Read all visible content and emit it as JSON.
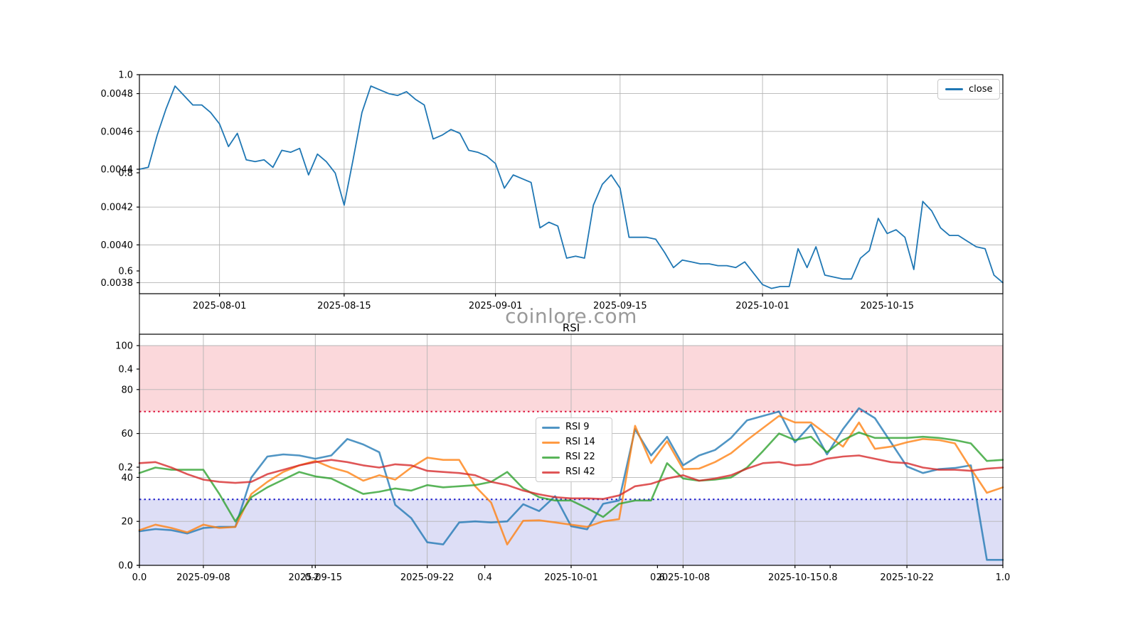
{
  "watermark": "coinlore.com",
  "colors": {
    "close_line": "#1f77b4",
    "rsi9": "#1f77b4",
    "rsi14": "#ff7f0e",
    "rsi22": "#2ca02c",
    "rsi42": "#d62728",
    "grid": "#b5b5b5",
    "axis": "#000000",
    "overbought_fill": "#fbd8db",
    "oversold_fill": "#dddef6",
    "overbought_line": "#dc143c",
    "oversold_line": "#2222cc",
    "watermark_gray": "#999999"
  },
  "chart_data": [
    {
      "type": "line",
      "title": "",
      "x": [
        "2025-07-23",
        "2025-07-24",
        "2025-07-25",
        "2025-07-26",
        "2025-07-27",
        "2025-07-28",
        "2025-07-29",
        "2025-07-30",
        "2025-07-31",
        "2025-08-01",
        "2025-08-02",
        "2025-08-03",
        "2025-08-04",
        "2025-08-05",
        "2025-08-06",
        "2025-08-07",
        "2025-08-08",
        "2025-08-09",
        "2025-08-10",
        "2025-08-11",
        "2025-08-12",
        "2025-08-13",
        "2025-08-14",
        "2025-08-15",
        "2025-08-16",
        "2025-08-17",
        "2025-08-18",
        "2025-08-19",
        "2025-08-20",
        "2025-08-21",
        "2025-08-22",
        "2025-08-23",
        "2025-08-24",
        "2025-08-25",
        "2025-08-26",
        "2025-08-27",
        "2025-08-28",
        "2025-08-29",
        "2025-08-30",
        "2025-08-31",
        "2025-09-01",
        "2025-09-02",
        "2025-09-03",
        "2025-09-04",
        "2025-09-05",
        "2025-09-06",
        "2025-09-07",
        "2025-09-08",
        "2025-09-09",
        "2025-09-10",
        "2025-09-11",
        "2025-09-12",
        "2025-09-13",
        "2025-09-14",
        "2025-09-15",
        "2025-09-16",
        "2025-09-17",
        "2025-09-18",
        "2025-09-19",
        "2025-09-20",
        "2025-09-21",
        "2025-09-22",
        "2025-09-23",
        "2025-09-24",
        "2025-09-25",
        "2025-09-26",
        "2025-09-27",
        "2025-09-28",
        "2025-09-29",
        "2025-09-30",
        "2025-10-01",
        "2025-10-02",
        "2025-10-03",
        "2025-10-04",
        "2025-10-05",
        "2025-10-06",
        "2025-10-07",
        "2025-10-08",
        "2025-10-09",
        "2025-10-10",
        "2025-10-11",
        "2025-10-12",
        "2025-10-13",
        "2025-10-14",
        "2025-10-15",
        "2025-10-16",
        "2025-10-17",
        "2025-10-18",
        "2025-10-19",
        "2025-10-20",
        "2025-10-21",
        "2025-10-22",
        "2025-10-23",
        "2025-10-24",
        "2025-10-25",
        "2025-10-26",
        "2025-10-27",
        "2025-10-28"
      ],
      "series": [
        {
          "name": "close",
          "color": "#1f77b4",
          "values": [
            0.0044,
            0.00441,
            0.00458,
            0.00472,
            0.00484,
            0.00479,
            0.00474,
            0.00474,
            0.0047,
            0.00464,
            0.00452,
            0.00459,
            0.00445,
            0.00444,
            0.00445,
            0.00441,
            0.0045,
            0.00449,
            0.00451,
            0.00437,
            0.00448,
            0.00444,
            0.00438,
            0.00421,
            0.00445,
            0.0047,
            0.00484,
            0.00482,
            0.0048,
            0.00479,
            0.00481,
            0.00477,
            0.00474,
            0.00456,
            0.00458,
            0.00461,
            0.00459,
            0.0045,
            0.00449,
            0.00447,
            0.00443,
            0.0043,
            0.00437,
            0.00435,
            0.00433,
            0.00409,
            0.00412,
            0.0041,
            0.00393,
            0.00394,
            0.00393,
            0.00421,
            0.00432,
            0.00437,
            0.0043,
            0.00404,
            0.00404,
            0.00404,
            0.00403,
            0.00396,
            0.00388,
            0.00392,
            0.00391,
            0.0039,
            0.0039,
            0.00389,
            0.00389,
            0.00388,
            0.00391,
            0.00385,
            0.00379,
            0.00377,
            0.00378,
            0.00378,
            0.00398,
            0.00388,
            0.00399,
            0.00384,
            0.00383,
            0.00382,
            0.00382,
            0.00393,
            0.00397,
            0.00414,
            0.00406,
            0.00408,
            0.00404,
            0.00387,
            0.00423,
            0.00418,
            0.00409,
            0.00405,
            0.00405,
            0.00402,
            0.00399,
            0.00398,
            0.00384,
            0.0038
          ]
        }
      ],
      "ylim": [
        0.003742,
        0.0049
      ],
      "yticks": [
        0.0048,
        0.0046,
        0.0044,
        0.0042,
        0.004,
        0.0038
      ],
      "ytick_labels": [
        "0.0048",
        "0.0046",
        "0.0044",
        "0.0042",
        "0.0040",
        "0.0038"
      ],
      "xticks": [
        "2025-08-01",
        "2025-08-15",
        "2025-09-01",
        "2025-09-15",
        "2025-10-01",
        "2025-10-15"
      ],
      "legend": [
        "close"
      ],
      "legend_position": "upper right",
      "grid": true
    },
    {
      "type": "line",
      "title": "RSI",
      "x": [
        "2025-09-04",
        "2025-09-05",
        "2025-09-06",
        "2025-09-07",
        "2025-09-08",
        "2025-09-09",
        "2025-09-10",
        "2025-09-11",
        "2025-09-12",
        "2025-09-13",
        "2025-09-14",
        "2025-09-15",
        "2025-09-16",
        "2025-09-17",
        "2025-09-18",
        "2025-09-19",
        "2025-09-20",
        "2025-09-21",
        "2025-09-22",
        "2025-09-23",
        "2025-09-24",
        "2025-09-25",
        "2025-09-26",
        "2025-09-27",
        "2025-09-28",
        "2025-09-29",
        "2025-09-30",
        "2025-10-01",
        "2025-10-02",
        "2025-10-03",
        "2025-10-04",
        "2025-10-05",
        "2025-10-06",
        "2025-10-07",
        "2025-10-08",
        "2025-10-09",
        "2025-10-10",
        "2025-10-11",
        "2025-10-12",
        "2025-10-13",
        "2025-10-14",
        "2025-10-15",
        "2025-10-16",
        "2025-10-17",
        "2025-10-18",
        "2025-10-19",
        "2025-10-20",
        "2025-10-21",
        "2025-10-22",
        "2025-10-23",
        "2025-10-24",
        "2025-10-25",
        "2025-10-26",
        "2025-10-27",
        "2025-10-28"
      ],
      "series": [
        {
          "name": "RSI 9",
          "color": "#1f77b4",
          "values": [
            15.5,
            16.5,
            16,
            14.5,
            17,
            17.5,
            17.5,
            40,
            49.5,
            50.5,
            50,
            48.5,
            50,
            57.5,
            55,
            51.5,
            27.5,
            21.5,
            10.5,
            9.5,
            19.5,
            20,
            19.5,
            20,
            27.8,
            24.7,
            31.5,
            17.8,
            16.4,
            28,
            29.5,
            62,
            50,
            58.5,
            45.5,
            50,
            52.5,
            58,
            66,
            68,
            70,
            56,
            64,
            50.5,
            62,
            71.5,
            67,
            56,
            45,
            42,
            43.8,
            44.3,
            45.5,
            2.5,
            2.5
          ]
        },
        {
          "name": "RSI 14",
          "color": "#ff7f0e",
          "values": [
            16,
            18.5,
            17,
            15,
            18.5,
            17,
            17.5,
            32.5,
            38,
            42.5,
            45.5,
            47.5,
            44.5,
            42.5,
            38.5,
            41,
            39,
            44.5,
            49,
            48,
            48,
            36,
            28.5,
            9.5,
            20.3,
            20.5,
            19.5,
            18.5,
            17.5,
            20,
            21,
            63.5,
            46.5,
            56.5,
            43.8,
            44,
            47,
            51,
            57,
            62.5,
            68,
            65,
            65,
            59.5,
            54,
            65,
            53,
            54,
            56,
            57.5,
            57,
            55.5,
            44,
            33,
            35.5
          ]
        },
        {
          "name": "RSI 22",
          "color": "#2ca02c",
          "values": [
            42,
            44.5,
            43.5,
            43.5,
            43.5,
            32.5,
            20,
            31,
            35.5,
            39,
            42.5,
            40.5,
            39.5,
            36,
            32.5,
            33.5,
            35,
            34,
            36.5,
            35.5,
            36,
            36.5,
            38,
            42.5,
            35,
            31,
            29.5,
            29.5,
            26,
            22,
            28,
            29.5,
            29.5,
            46.5,
            39.5,
            38.5,
            39,
            40,
            44.5,
            52,
            60,
            57,
            58.5,
            51.5,
            57,
            60.5,
            58,
            58,
            58,
            58.5,
            58,
            57,
            55.5,
            47.5,
            48
          ]
        },
        {
          "name": "RSI 42",
          "color": "#d62728",
          "values": [
            46.5,
            47,
            44.5,
            41.5,
            39,
            38,
            37.5,
            38,
            41.5,
            43.5,
            45.5,
            47,
            48,
            47,
            45.5,
            44.5,
            46,
            45.5,
            43,
            42.5,
            42,
            41,
            38,
            36.5,
            34,
            32.3,
            31,
            30.5,
            30.5,
            30.2,
            31.8,
            36,
            37.1,
            39.5,
            41,
            38.5,
            39.5,
            41,
            44,
            46.5,
            47,
            45.5,
            46,
            48.5,
            49.5,
            50,
            48.5,
            47,
            46.5,
            44.5,
            43.5,
            43.5,
            43,
            44,
            44.5
          ]
        }
      ],
      "ylim": [
        0,
        100
      ],
      "yticks": [
        0,
        20,
        40,
        60,
        80,
        100
      ],
      "ytick_labels": [
        "0",
        "20",
        "40",
        "60",
        "80",
        "100"
      ],
      "xticks": [
        "2025-09-08",
        "2025-09-15",
        "2025-09-22",
        "2025-10-01",
        "2025-10-08",
        "2025-10-15",
        "2025-10-22"
      ],
      "overbought_level": 70,
      "oversold_level": 30,
      "legend": [
        "RSI 9",
        "RSI 14",
        "RSI 22",
        "RSI 42"
      ],
      "legend_position": "center",
      "grid": true
    }
  ],
  "overlay_axis": {
    "yticks": [
      "1.0",
      "0.8",
      "0.6",
      "0.4",
      "0.2",
      "0.0"
    ],
    "xticks": [
      "0.0",
      "0.2",
      "0.4",
      "0.6",
      "0.8",
      "1.0"
    ]
  }
}
